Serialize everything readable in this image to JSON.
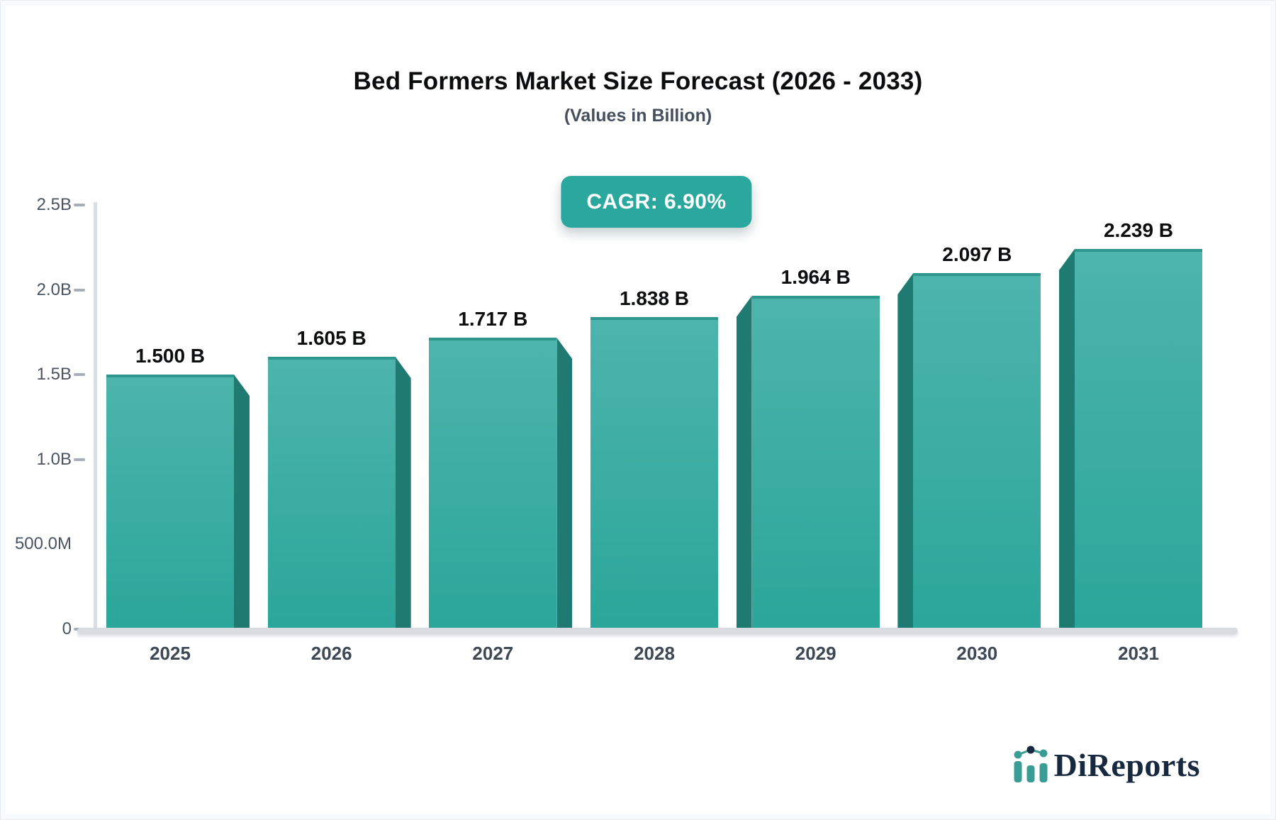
{
  "title": "Bed Formers Market Size Forecast (2026 - 2033)",
  "subtitle": "(Values in Billion)",
  "badge": {
    "label": "CAGR: 6.90%"
  },
  "watermark": {
    "brand": "DiReports",
    "icon": "bar-line-chart-icon"
  },
  "colors": {
    "accent_teal": "#2ba89d",
    "bar_top": "#4db4ab",
    "bar_bottom": "#2ba69a",
    "bar_side": "#1f7b72",
    "bar_top_edge": "#2e968c",
    "axis_gray": "#d8dce1",
    "label_slate": "#4a5362",
    "logo_navy": "#16293e",
    "logo_teal": "#3a9d95"
  },
  "chart_data": {
    "type": "bar",
    "categories": [
      "2025",
      "2026",
      "2027",
      "2028",
      "2029",
      "2030",
      "2031"
    ],
    "values": [
      1.5,
      1.605,
      1.717,
      1.838,
      1.964,
      2.097,
      2.239
    ],
    "value_labels": [
      "1.500 B",
      "1.605 B",
      "1.717 B",
      "1.838 B",
      "1.964 B",
      "2.097 B",
      "2.239 B"
    ],
    "title": "Bed Formers Market Size Forecast (2026 - 2033)",
    "subtitle": "(Values in Billion)",
    "xlabel": "",
    "ylabel": "",
    "ylim": [
      0,
      2.5
    ],
    "yticks": [
      {
        "label": "2.5B",
        "value": 2.5,
        "has_tick": true
      },
      {
        "label": "2.0B",
        "value": 2.0,
        "has_tick": true
      },
      {
        "label": "1.5B",
        "value": 1.5,
        "has_tick": true
      },
      {
        "label": "1.0B",
        "value": 1.0,
        "has_tick": true
      },
      {
        "label": "500.0M",
        "value": 0.5,
        "has_tick": false
      },
      {
        "label": "0",
        "value": 0.0,
        "has_tick": true
      }
    ],
    "grid": false,
    "legend": false,
    "style": "3d-extruded-bars, central perspective (left bars show right face, right bars show left face)"
  }
}
